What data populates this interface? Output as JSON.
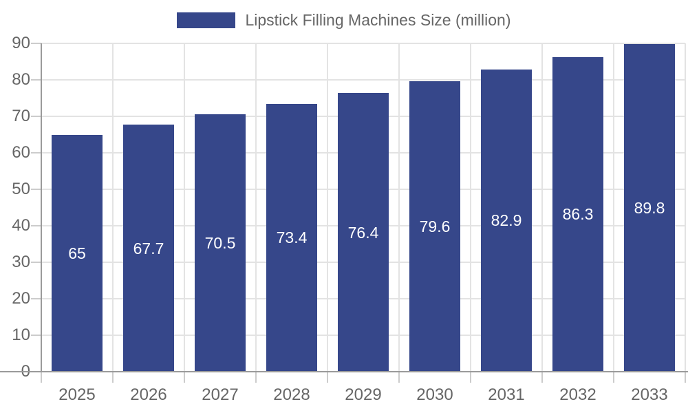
{
  "legend": {
    "label": "Lipstick Filling Machines Size (million)",
    "swatch_color": "#36478a"
  },
  "chart_data": {
    "type": "bar",
    "title": "Lipstick Filling Machines Size (million)",
    "categories": [
      "2025",
      "2026",
      "2027",
      "2028",
      "2029",
      "2030",
      "2031",
      "2032",
      "2033"
    ],
    "values": [
      65,
      67.7,
      70.5,
      73.4,
      76.4,
      79.6,
      82.9,
      86.3,
      89.8
    ],
    "value_labels": [
      "65",
      "67.7",
      "70.5",
      "73.4",
      "76.4",
      "79.6",
      "82.9",
      "86.3",
      "89.8"
    ],
    "xlabel": "",
    "ylabel": "",
    "ylim": [
      0,
      90
    ],
    "ytick_step": 10,
    "ytick_labels": [
      "0",
      "10",
      "20",
      "30",
      "40",
      "50",
      "60",
      "70",
      "80",
      "90"
    ],
    "grid": true,
    "legend_position": "top-center",
    "colors": {
      "bar": "#36478a",
      "value_label": "#ffffff",
      "axis_label": "#666666",
      "legend_label": "#666666",
      "gridline": "#e3e3e3",
      "axis_line": "#9a9a9a",
      "tick": "#cccccc",
      "background": "#ffffff"
    }
  }
}
